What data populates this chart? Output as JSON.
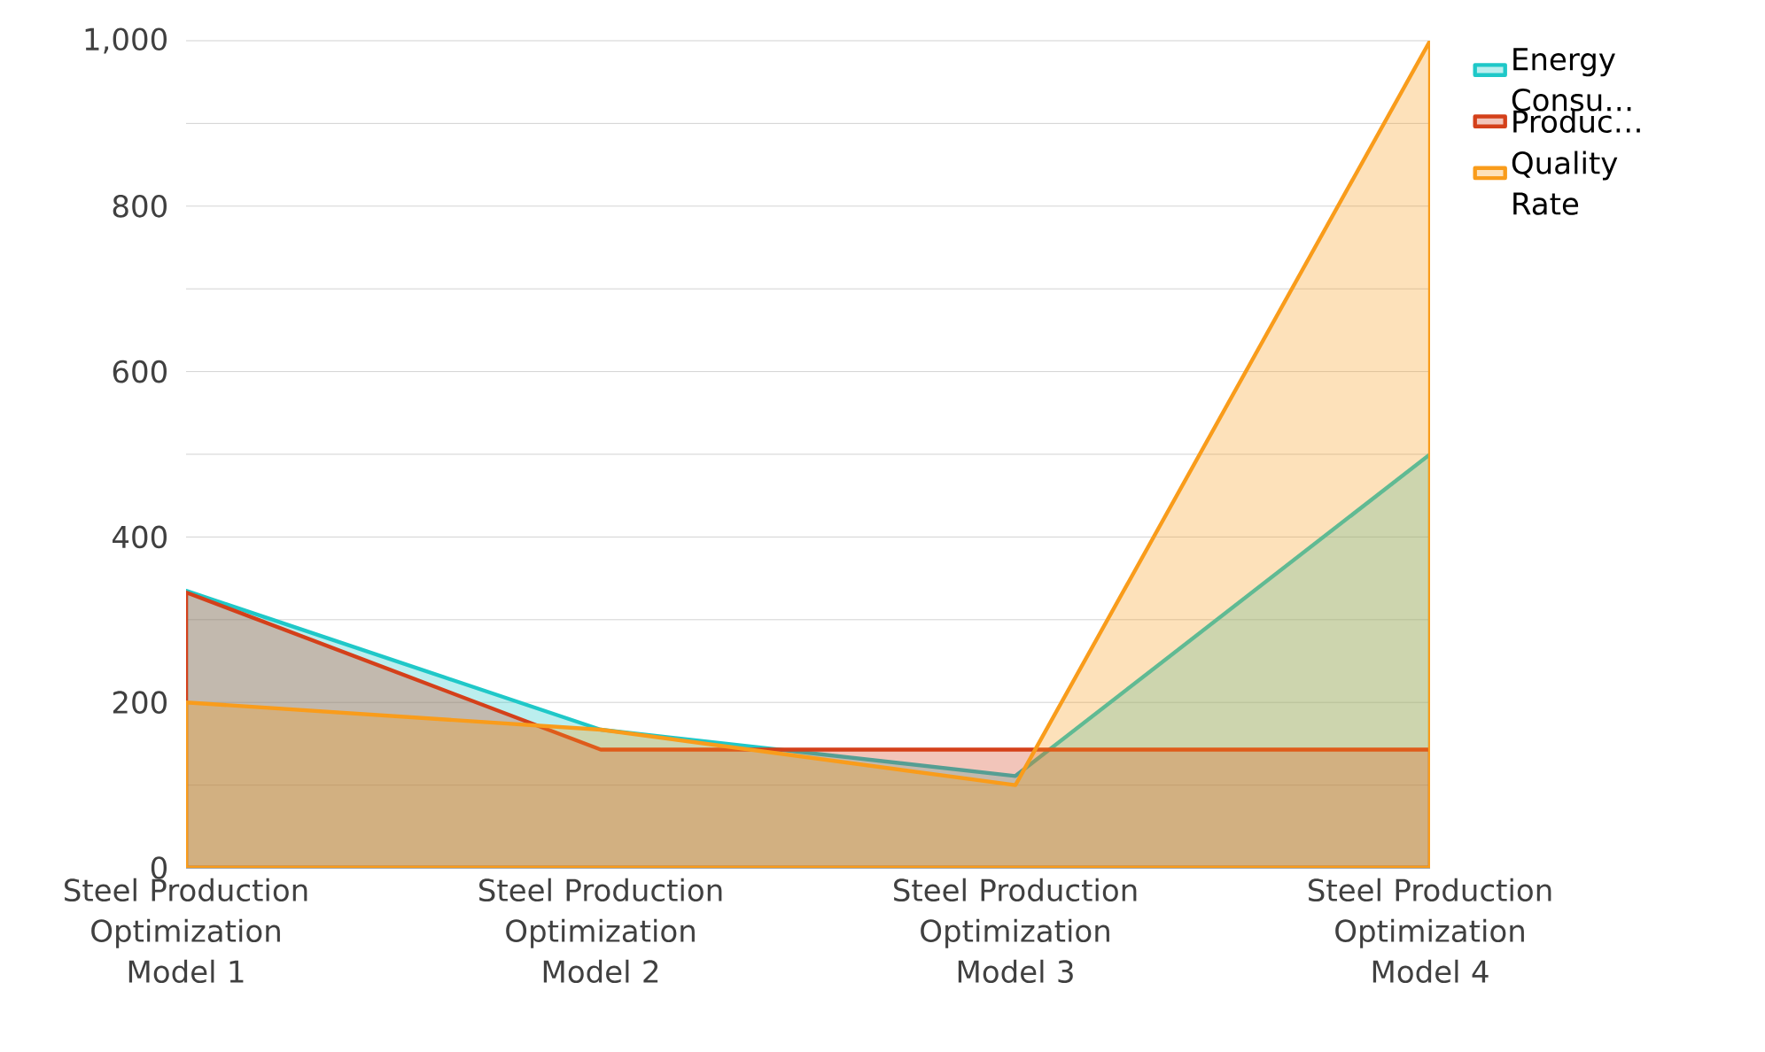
{
  "chart_data": {
    "type": "area",
    "categories": [
      "Steel Production Optimization Model 1",
      "Steel Production Optimization Model 2",
      "Steel Production Optimization Model 3",
      "Steel Production Optimization Model 4"
    ],
    "series": [
      {
        "name": "Energy Consu…",
        "color": "#1fc8c8",
        "values": [
          335,
          167,
          111,
          500
        ]
      },
      {
        "name": "Produc…",
        "color": "#d4401a",
        "values": [
          333,
          143,
          143,
          143
        ]
      },
      {
        "name": "Quality Rate",
        "color": "#f99c1b",
        "values": [
          200,
          167,
          100,
          1000
        ]
      }
    ],
    "ylim": [
      0,
      1000
    ],
    "yticks": [
      0,
      {
        "value": 100,
        "label": null
      },
      200,
      {
        "value": 300,
        "label": null
      },
      400,
      {
        "value": 500,
        "label": null
      },
      600,
      {
        "value": 700,
        "label": null
      },
      800,
      {
        "value": 900,
        "label": null
      },
      {
        "value": 1000,
        "label": "1,000"
      }
    ],
    "grid": "y",
    "legend": "right",
    "line_style": "solid"
  }
}
